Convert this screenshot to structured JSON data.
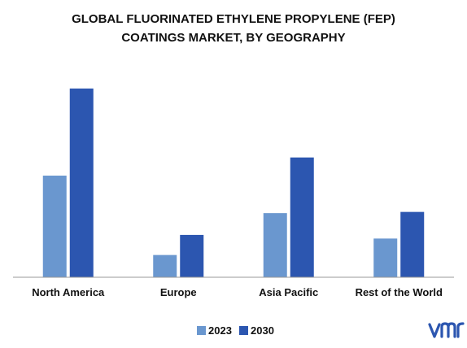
{
  "chart_data": {
    "type": "bar",
    "title": "GLOBAL FLUORINATED ETHYLENE PROPYLENE (FEP) COATINGS MARKET, BY GEOGRAPHY",
    "title_lines": [
      "GLOBAL FLUORINATED ETHYLENE PROPYLENE (FEP)",
      "COATINGS MARKET, BY GEOGRAPHY"
    ],
    "categories": [
      "North America",
      "Europe",
      "Asia Pacific",
      "Rest of the World"
    ],
    "series": [
      {
        "name": "2023",
        "color": "#6a97cf",
        "values": [
          42,
          9.2,
          26.5,
          16
        ]
      },
      {
        "name": "2030",
        "color": "#2c56b0",
        "values": [
          78,
          17.5,
          49.5,
          27
        ]
      }
    ],
    "ylim": [
      0,
      85
    ],
    "grid": false,
    "legend": "bottom-center",
    "xlabel": "",
    "ylabel": ""
  },
  "logo": {
    "name": "vmr-logo-icon",
    "text": "vmr",
    "color": "#2c56b0"
  }
}
